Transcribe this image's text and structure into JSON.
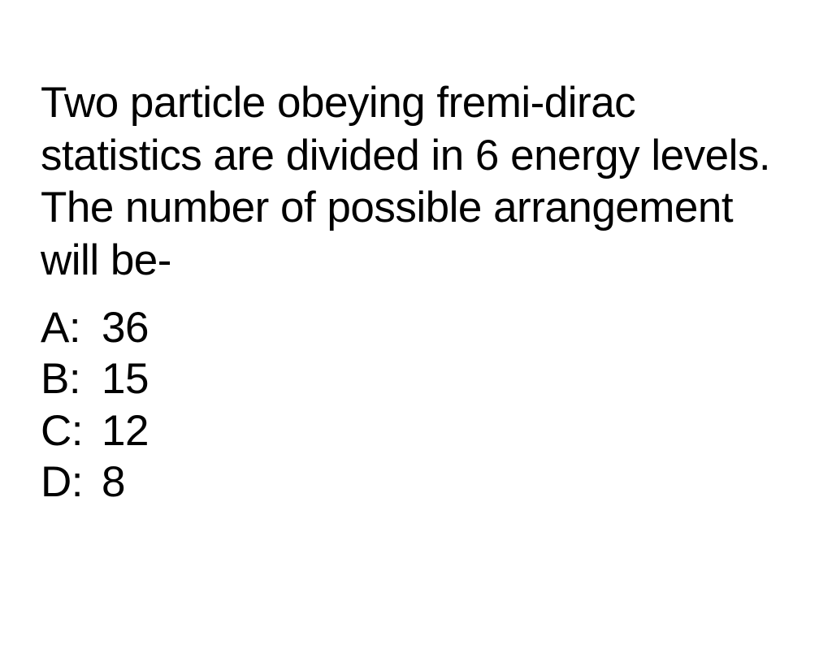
{
  "question": {
    "text": "Two particle obeying fremi-dirac statistics are divided in 6 energy levels. The number of possible arrangement will be-",
    "text_fontsize": 53,
    "text_color": "#000000",
    "background_color": "#ffffff"
  },
  "options": [
    {
      "label": "A:",
      "value": "36"
    },
    {
      "label": "B:",
      "value": "15"
    },
    {
      "label": "C:",
      "value": "12"
    },
    {
      "label": "D:",
      "value": "8"
    }
  ],
  "styling": {
    "option_fontsize": 53,
    "option_color": "#000000",
    "font_family": "Arial"
  }
}
